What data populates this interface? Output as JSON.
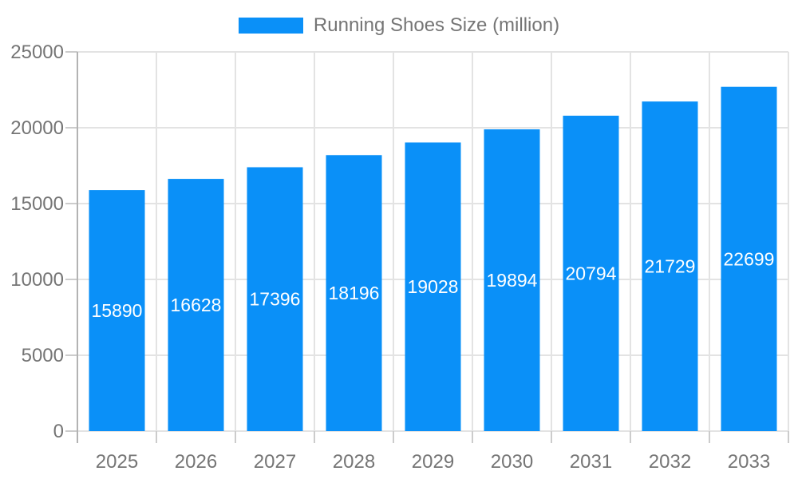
{
  "legend": {
    "label": "Running Shoes Size (million)"
  },
  "colors": {
    "bar": "#0a90f8",
    "value_label": "#ffffff",
    "axis_text": "#757575",
    "legend_text": "#757575",
    "gridline": "#e3e3e3",
    "tick": "#cccccc",
    "axis_line": "#b3b3b3",
    "background": "#ffffff"
  },
  "chart_data": {
    "type": "bar",
    "title": "Running Shoes Size (million)",
    "categories": [
      "2025",
      "2026",
      "2027",
      "2028",
      "2029",
      "2030",
      "2031",
      "2032",
      "2033"
    ],
    "values": [
      15890,
      16628,
      17396,
      18196,
      19028,
      19894,
      20794,
      21729,
      22699
    ],
    "xlabel": "",
    "ylabel": "",
    "ylim": [
      0,
      25000
    ],
    "yticks": [
      0,
      5000,
      10000,
      15000,
      20000,
      25000
    ],
    "grid": true,
    "legend_position": "top",
    "value_label_position": "inside-middle"
  }
}
